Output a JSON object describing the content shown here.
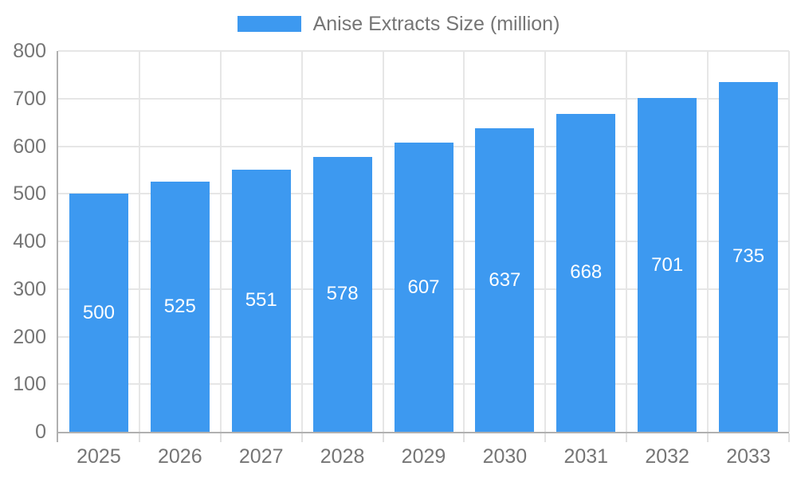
{
  "legend": {
    "label": "Anise Extracts Size (million)"
  },
  "colors": {
    "bar": "#3d99f0",
    "bar_label": "#ffffff",
    "grid": "#e6e6e6",
    "axis": "#b0b0b0",
    "tick": "#e0e0e0",
    "text": "#757575"
  },
  "chart_data": {
    "type": "bar",
    "title": "Anise Extracts Size (million)",
    "categories": [
      "2025",
      "2026",
      "2027",
      "2028",
      "2029",
      "2030",
      "2031",
      "2032",
      "2033"
    ],
    "values": [
      500,
      525,
      551,
      578,
      607,
      637,
      668,
      701,
      735
    ],
    "xlabel": "",
    "ylabel": "",
    "ylim": [
      0,
      800
    ],
    "ytick_step": 100,
    "grid": true,
    "legend_position": "top",
    "bar_label_position": "center"
  }
}
